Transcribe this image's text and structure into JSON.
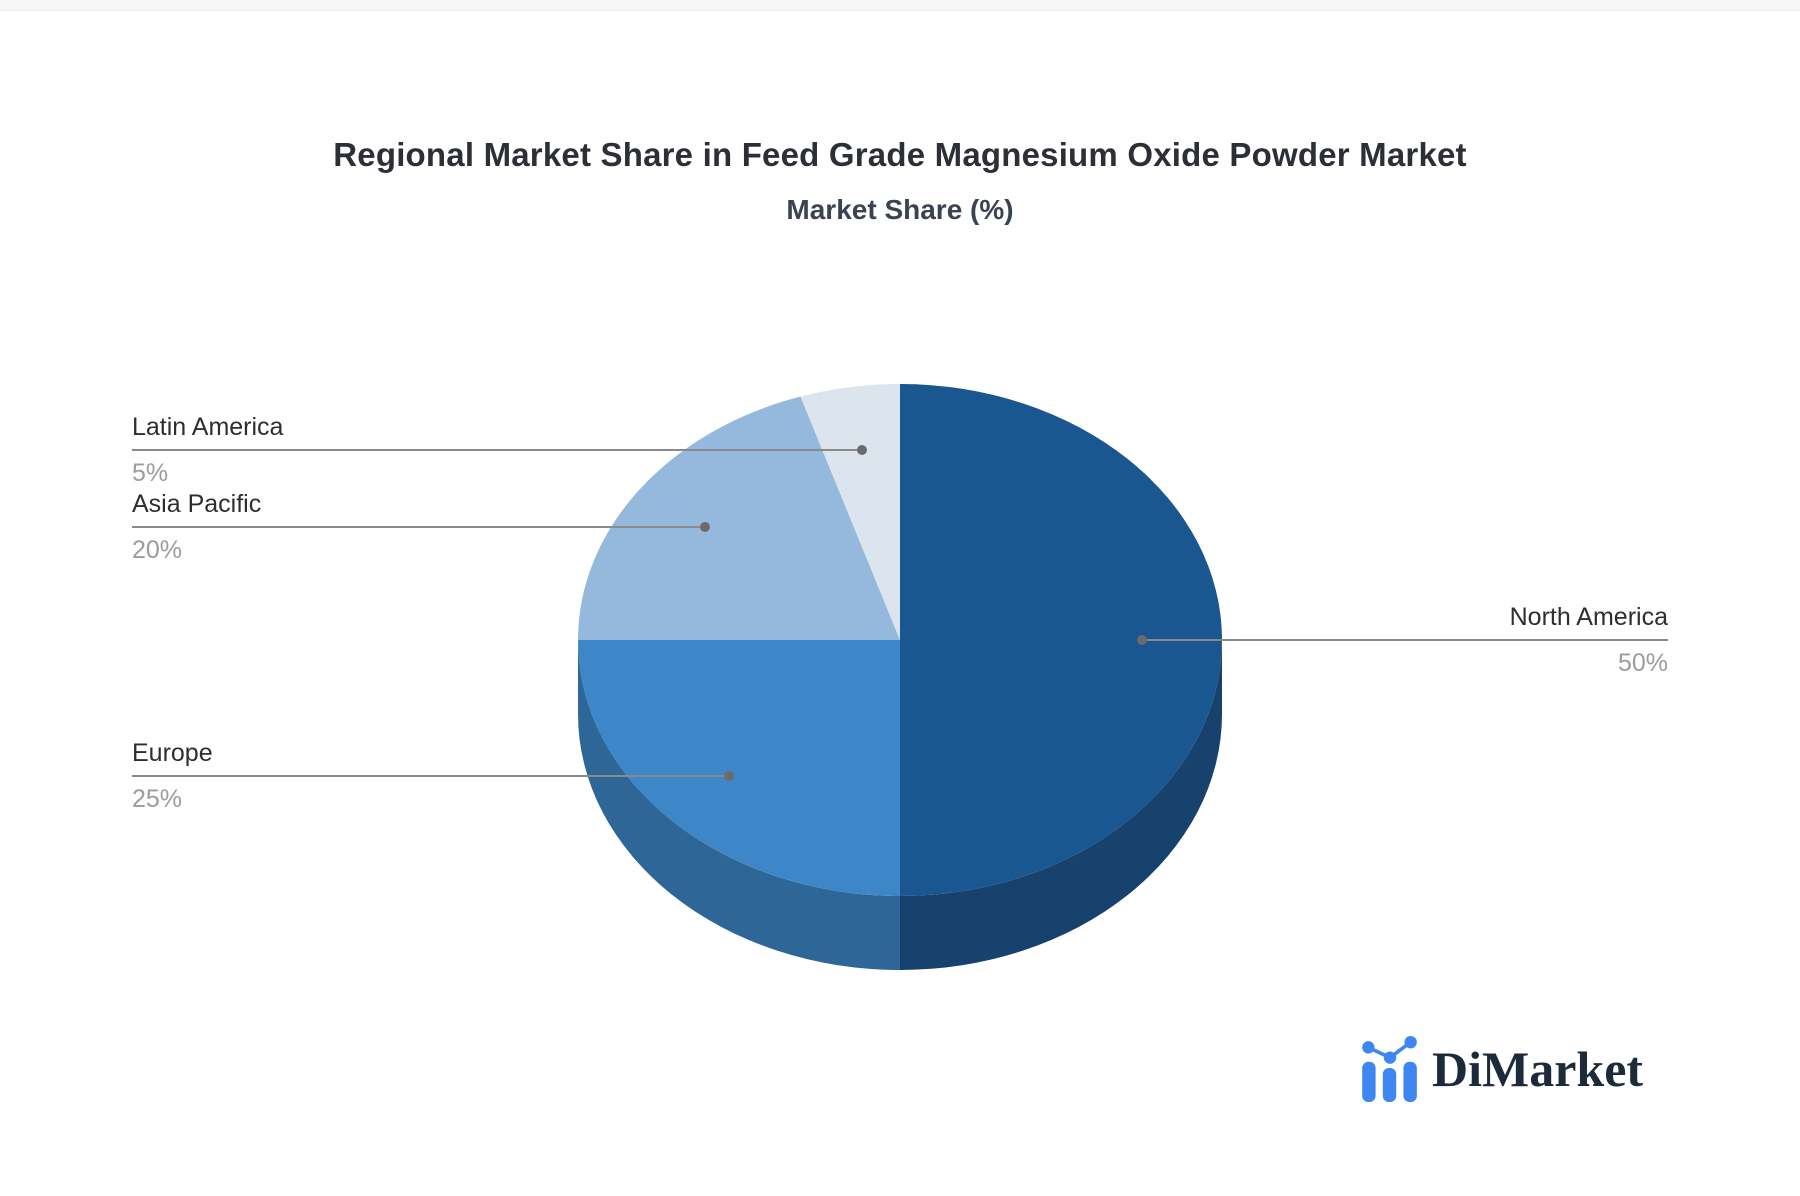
{
  "brand": {
    "name": "DiMarket",
    "icon": "bar-chart-logo-icon"
  },
  "chart_data": {
    "type": "pie",
    "style": "3d",
    "title": "Regional Market Share in Feed Grade Magnesium Oxide Powder Market",
    "subtitle": "Market Share (%)",
    "unit": "%",
    "start_angle_deg": 0,
    "direction": "clockwise",
    "legend": "none",
    "connector_color": "#8a8a8a",
    "connector_dot_color": "#6b6b6b",
    "slices": [
      {
        "label": "North America",
        "value": 50,
        "display": "50%",
        "color": "#1a568f",
        "side_color": "#16426d",
        "label_side": "right"
      },
      {
        "label": "Europe",
        "value": 25,
        "display": "25%",
        "color": "#3d87c8",
        "side_color": "#2e6797",
        "label_side": "left"
      },
      {
        "label": "Asia Pacific",
        "value": 20,
        "display": "20%",
        "color": "#95b9dc",
        "side_color": "#7ea3c8",
        "label_side": "left"
      },
      {
        "label": "Latin America",
        "value": 5,
        "display": "5%",
        "color": "#dce4ee",
        "side_color": "#c2cedd",
        "label_side": "left"
      }
    ]
  }
}
